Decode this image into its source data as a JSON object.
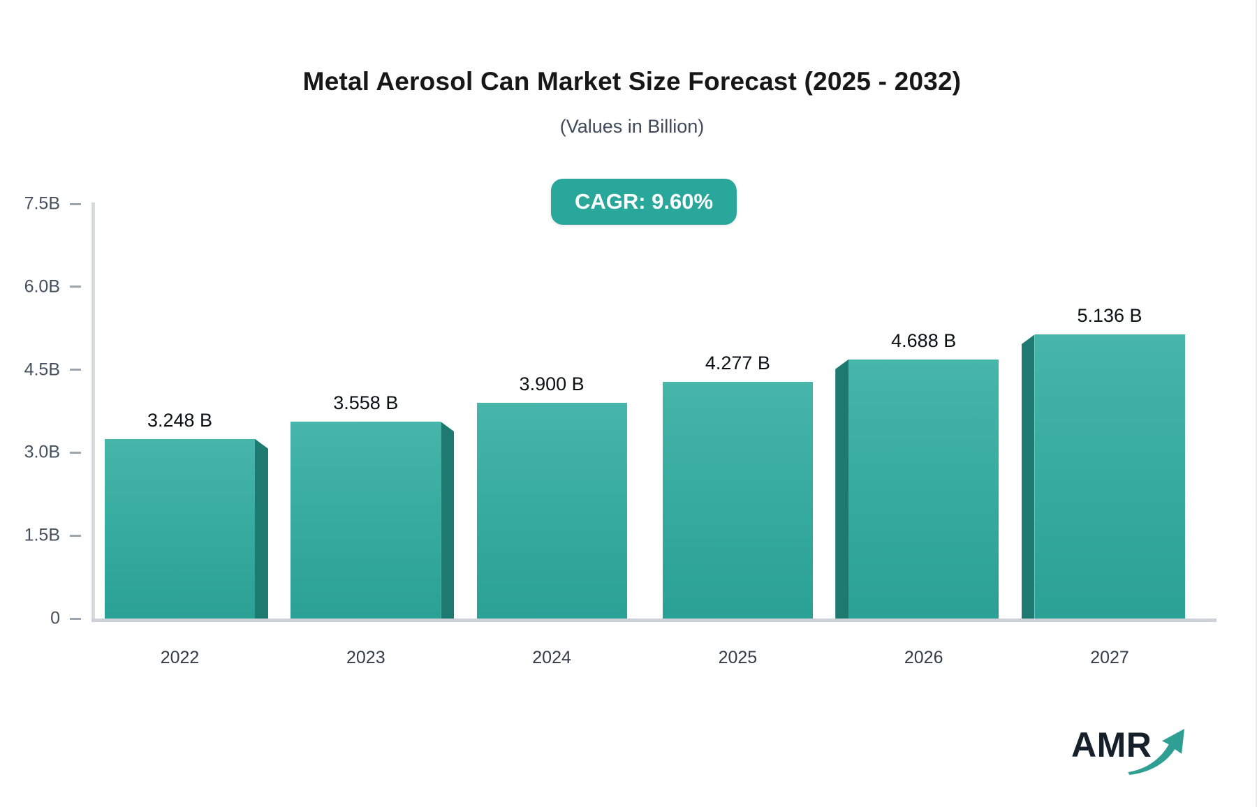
{
  "title": "Metal Aerosol Can Market Size Forecast (2025 - 2032)",
  "subtitle": "(Values in Billion)",
  "badge": {
    "label": "CAGR: 9.60%"
  },
  "logo": {
    "text": "AMR",
    "icon": "growth-arrow-icon"
  },
  "colors": {
    "bar_top": "#47b5aa",
    "bar_bottom": "#2ba095",
    "bar_side": "#1e7a70",
    "badge_bg": "#29a79b",
    "axis_line": "#ccd2d8",
    "logo_arrow": "#2f9e93"
  },
  "chart_data": {
    "type": "bar",
    "categories": [
      "2022",
      "2023",
      "2024",
      "2025",
      "2026",
      "2027"
    ],
    "values": [
      3.248,
      3.558,
      3.9,
      4.277,
      4.688,
      5.136
    ],
    "value_labels": [
      "3.248 B",
      "3.558 B",
      "3.900 B",
      "4.277 B",
      "4.688 B",
      "5.136 B"
    ],
    "bar_3d_side": [
      "right",
      "right",
      "none",
      "none",
      "left",
      "left"
    ],
    "y_ticks": [
      {
        "value": 0.0,
        "label": "0"
      },
      {
        "value": 1.5,
        "label": "1.5B"
      },
      {
        "value": 3.0,
        "label": "3.0B"
      },
      {
        "value": 4.5,
        "label": "4.5B"
      },
      {
        "value": 6.0,
        "label": "6.0B"
      },
      {
        "value": 7.5,
        "label": "7.5B"
      }
    ],
    "ylim": [
      0,
      7.5
    ],
    "xlabel": "",
    "ylabel": "",
    "grid": false,
    "legend": false
  }
}
